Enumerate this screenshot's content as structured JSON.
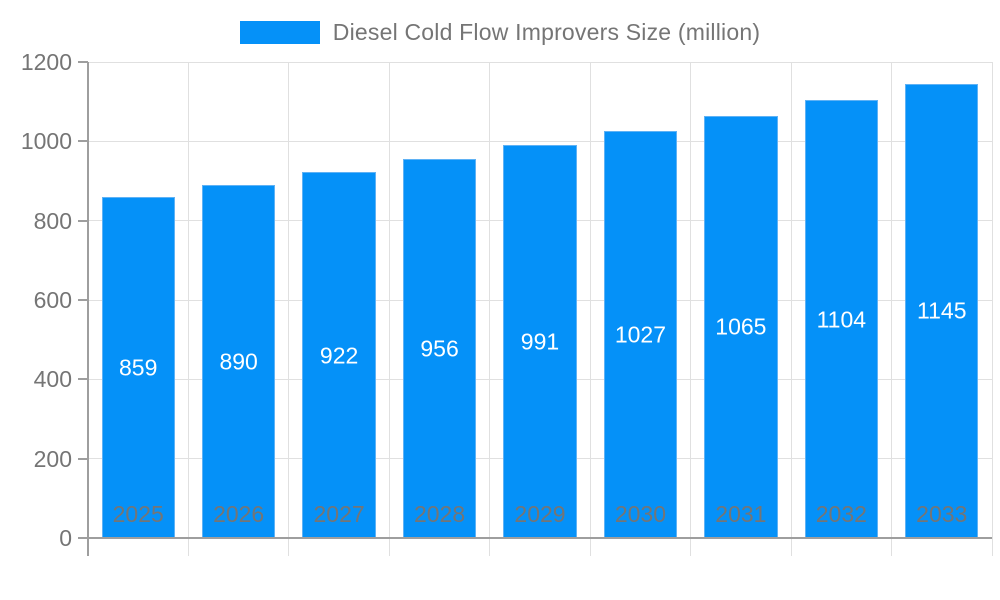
{
  "legend": {
    "label": "Diesel Cold Flow Improvers Size (million)",
    "swatch_color": "#0591f8"
  },
  "chart_data": {
    "type": "bar",
    "title": "Diesel Cold Flow Improvers Size (million)",
    "categories": [
      "2025",
      "2026",
      "2027",
      "2028",
      "2029",
      "2030",
      "2031",
      "2032",
      "2033"
    ],
    "series": [
      {
        "name": "Diesel Cold Flow Improvers Size (million)",
        "values": [
          859,
          890,
          922,
          956,
          991,
          1027,
          1065,
          1104,
          1145
        ]
      }
    ],
    "xlabel": "",
    "ylabel": "",
    "ylim": [
      0,
      1200
    ],
    "yticks": [
      0,
      200,
      400,
      600,
      800,
      1000,
      1200
    ],
    "grid": true,
    "legend_position": "top",
    "colors": {
      "bar_fill": "#0591f8",
      "bar_stroke": "#5fb2f5",
      "value_label": "#ffffff",
      "axis_text": "#757575",
      "axis_line": "#9e9e9e",
      "gridline": "#e0e0e0"
    }
  }
}
